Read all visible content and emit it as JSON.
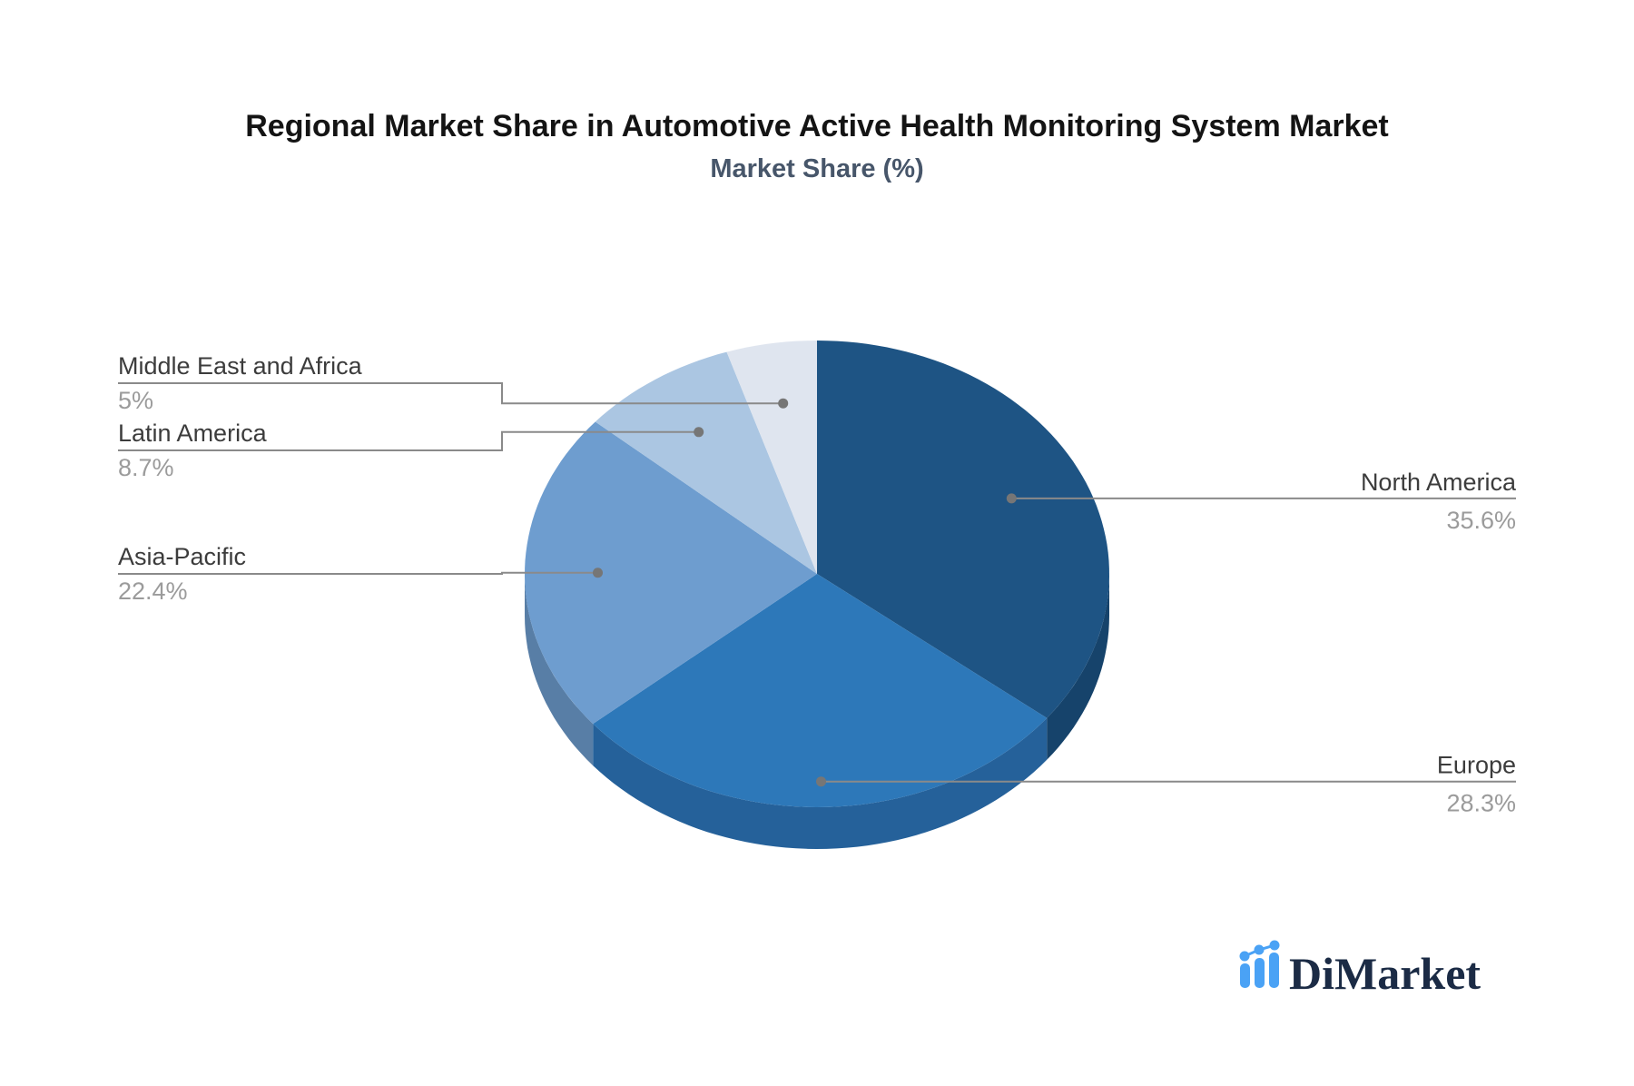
{
  "header": {
    "title": "Regional Market Share in Automotive Active Health Monitoring System Market",
    "subtitle": "Market Share (%)"
  },
  "chart_data": {
    "type": "pie",
    "style": "3d",
    "title": "Regional Market Share in Automotive Active Health Monitoring System Market",
    "subtitle": "Market Share (%)",
    "unit": "%",
    "legend_position": "none",
    "categories": [
      "North America",
      "Europe",
      "Asia-Pacific",
      "Latin America",
      "Middle East and Africa"
    ],
    "values": [
      35.6,
      28.3,
      22.4,
      8.7,
      5
    ],
    "value_labels": [
      "35.6%",
      "28.3%",
      "22.4%",
      "8.7%",
      "5%"
    ],
    "slice_colors": [
      "#1e5484",
      "#2d78b9",
      "#6e9dcf",
      "#abc6e2",
      "#dfe5ef"
    ],
    "side_colors": [
      "#16436b",
      "#25619a",
      "#587ea6",
      "#8aa0b8",
      "#b9c3cf"
    ],
    "label_name_color": "#3c3c3c",
    "label_value_color": "#9b9b9b",
    "leader_line_color": "#8a8a8a",
    "start_angle_deg": 0,
    "direction": "clockwise"
  },
  "branding": {
    "logo_text": "DiMarket",
    "logo_icon": "bar-line-chart-icon",
    "logo_text_color": "#1b2b45",
    "logo_accent_color": "#4aa2f5"
  }
}
